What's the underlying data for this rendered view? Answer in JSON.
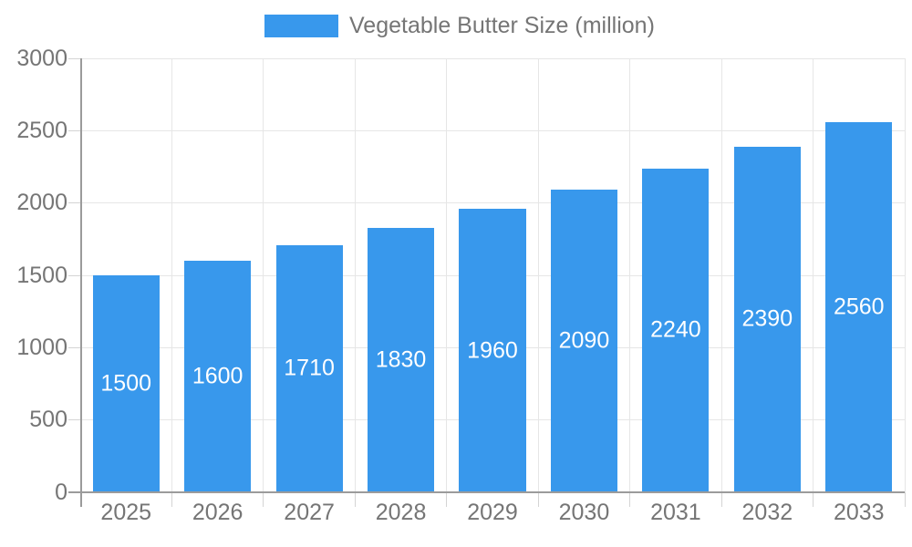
{
  "legend": {
    "label": "Vegetable Butter Size (million)"
  },
  "chart_data": {
    "type": "bar",
    "title": "",
    "xlabel": "",
    "ylabel": "",
    "categories": [
      "2025",
      "2026",
      "2027",
      "2028",
      "2029",
      "2030",
      "2031",
      "2032",
      "2033"
    ],
    "series": [
      {
        "name": "Vegetable Butter Size (million)",
        "values": [
          1500,
          1600,
          1710,
          1830,
          1960,
          2090,
          2240,
          2390,
          2560
        ]
      }
    ],
    "ylim": [
      0,
      3000
    ],
    "yticks": [
      0,
      500,
      1000,
      1500,
      2000,
      2500,
      3000
    ],
    "grid": true,
    "legend_position": "top",
    "bar_labels_inside": true
  },
  "colors": {
    "bar": "#3898ec",
    "grid": "#e6e6e6",
    "axis": "#9b9b9b",
    "tick": "#d4d4d4",
    "text": "#757575",
    "bar_label": "#ffffff",
    "background": "#ffffff"
  }
}
